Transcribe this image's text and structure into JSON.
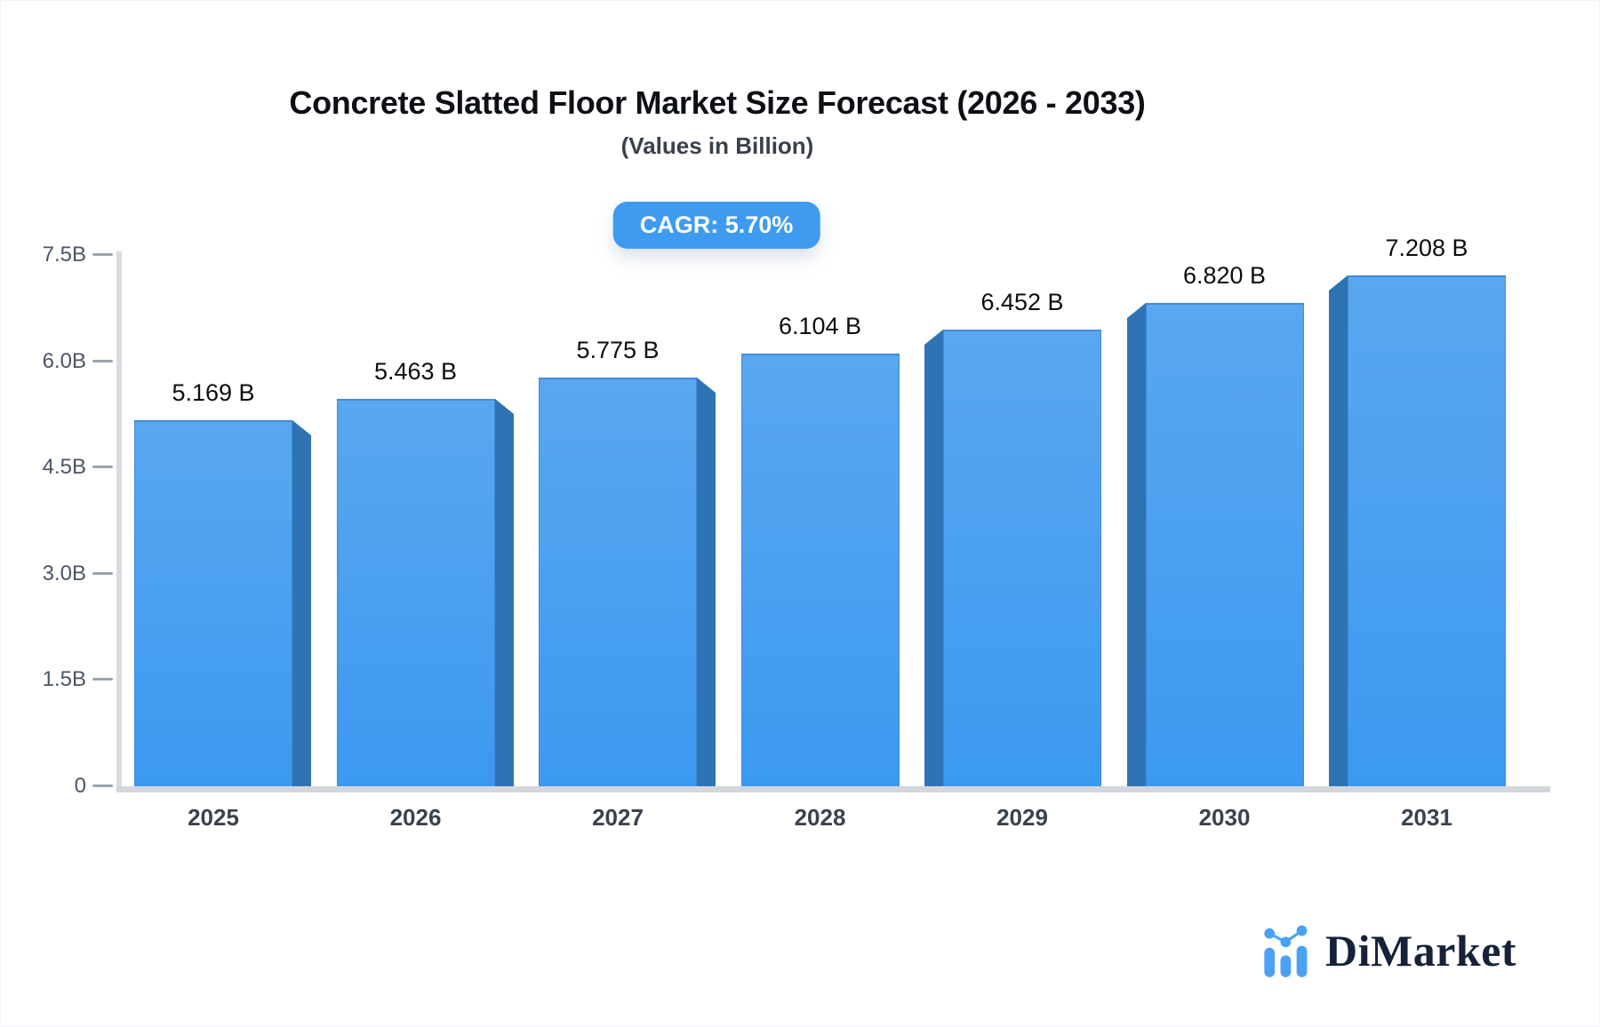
{
  "header": {
    "title": "Concrete Slatted Floor Market Size Forecast (2026 - 2033)",
    "subtitle": "(Values in Billion)",
    "cagr_badge": "CAGR: 5.70%"
  },
  "chart_data": {
    "type": "bar",
    "title": "Concrete Slatted Floor Market Size Forecast (2026 - 2033)",
    "subtitle": "(Values in Billion)",
    "cagr_label": "CAGR: 5.70%",
    "categories": [
      "2025",
      "2026",
      "2027",
      "2028",
      "2029",
      "2030",
      "2031"
    ],
    "values": [
      5.169,
      5.463,
      5.775,
      6.104,
      6.452,
      6.82,
      7.208
    ],
    "value_labels": [
      "5.169 B",
      "5.463 B",
      "5.775 B",
      "6.104 B",
      "6.452 B",
      "6.820 B",
      "7.208 B"
    ],
    "ylim": [
      0,
      7.5
    ],
    "yticks": [
      {
        "value": 0,
        "label": "0"
      },
      {
        "value": 1.5,
        "label": "1.5B"
      },
      {
        "value": 3,
        "label": "3.0B"
      },
      {
        "value": 4.5,
        "label": "4.5B"
      },
      {
        "value": 6,
        "label": "6.0B"
      },
      {
        "value": 7.5,
        "label": "7.5B"
      }
    ],
    "grid": "off",
    "legend": "none",
    "bar_style": "3d-perspective-toward-center"
  },
  "branding": {
    "name": "DiMarket",
    "icon": "dimarket-bar-chart-logo-icon"
  },
  "colors": {
    "bar_face_top": "#59A7F0",
    "bar_face_bottom": "#3C99F1",
    "bar_edge": "#4289D8",
    "bar_side": "#2E74B4",
    "badge_bg": "#3E9BF0",
    "badge_text": "#FFFFFF",
    "axis_line": "#D9DCE1",
    "baseline": "#D3D7DD",
    "tick": "#9AA4AF",
    "y_label": "#4C5564",
    "x_label": "#39424F",
    "value_label": "#0B0E12",
    "title": "#0C0F14",
    "subtitle": "#39414E",
    "logo_blue": "#4BA2F5",
    "logo_text": "#16223A",
    "background": "#FFFFFF"
  }
}
